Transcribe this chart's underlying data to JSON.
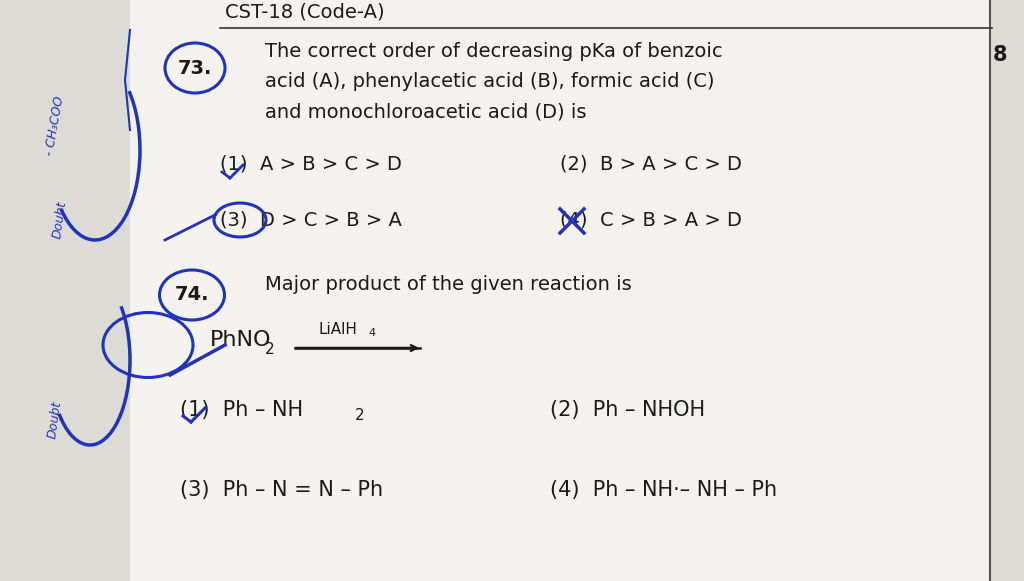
{
  "bg_color": "#e8e6e2",
  "paper_color": "#f2f0ec",
  "text_color": "#1a1a1a",
  "hand_color": "#2233bb",
  "header": "CST-18 (Code-A)",
  "page_num": "8",
  "q73_line1": "The correct order of decreasing pKa of benzoic",
  "q73_line2": "acid (A), phenylacetic acid (B), formic acid (C)",
  "q73_line3": "and monochloroacetic acid (D) is",
  "q73_o1": "(1)  A > B > C > D",
  "q73_o2": "(2)  B > A > C > D",
  "q73_o3": "(3)  D > C > B > A",
  "q73_o4": "(4)  C > B > A > D",
  "q74_text": "Major product of the given reaction is",
  "reactant": "PhNO",
  "reagent": "LiAlH",
  "q74_o1": "(1)  Ph – NH",
  "q74_o2": "(2)  Ph – NHOH",
  "q74_o3": "(3)  Ph – N = N – Ph",
  "q74_o4": "(4)  Ph – NH – NH – Ph"
}
